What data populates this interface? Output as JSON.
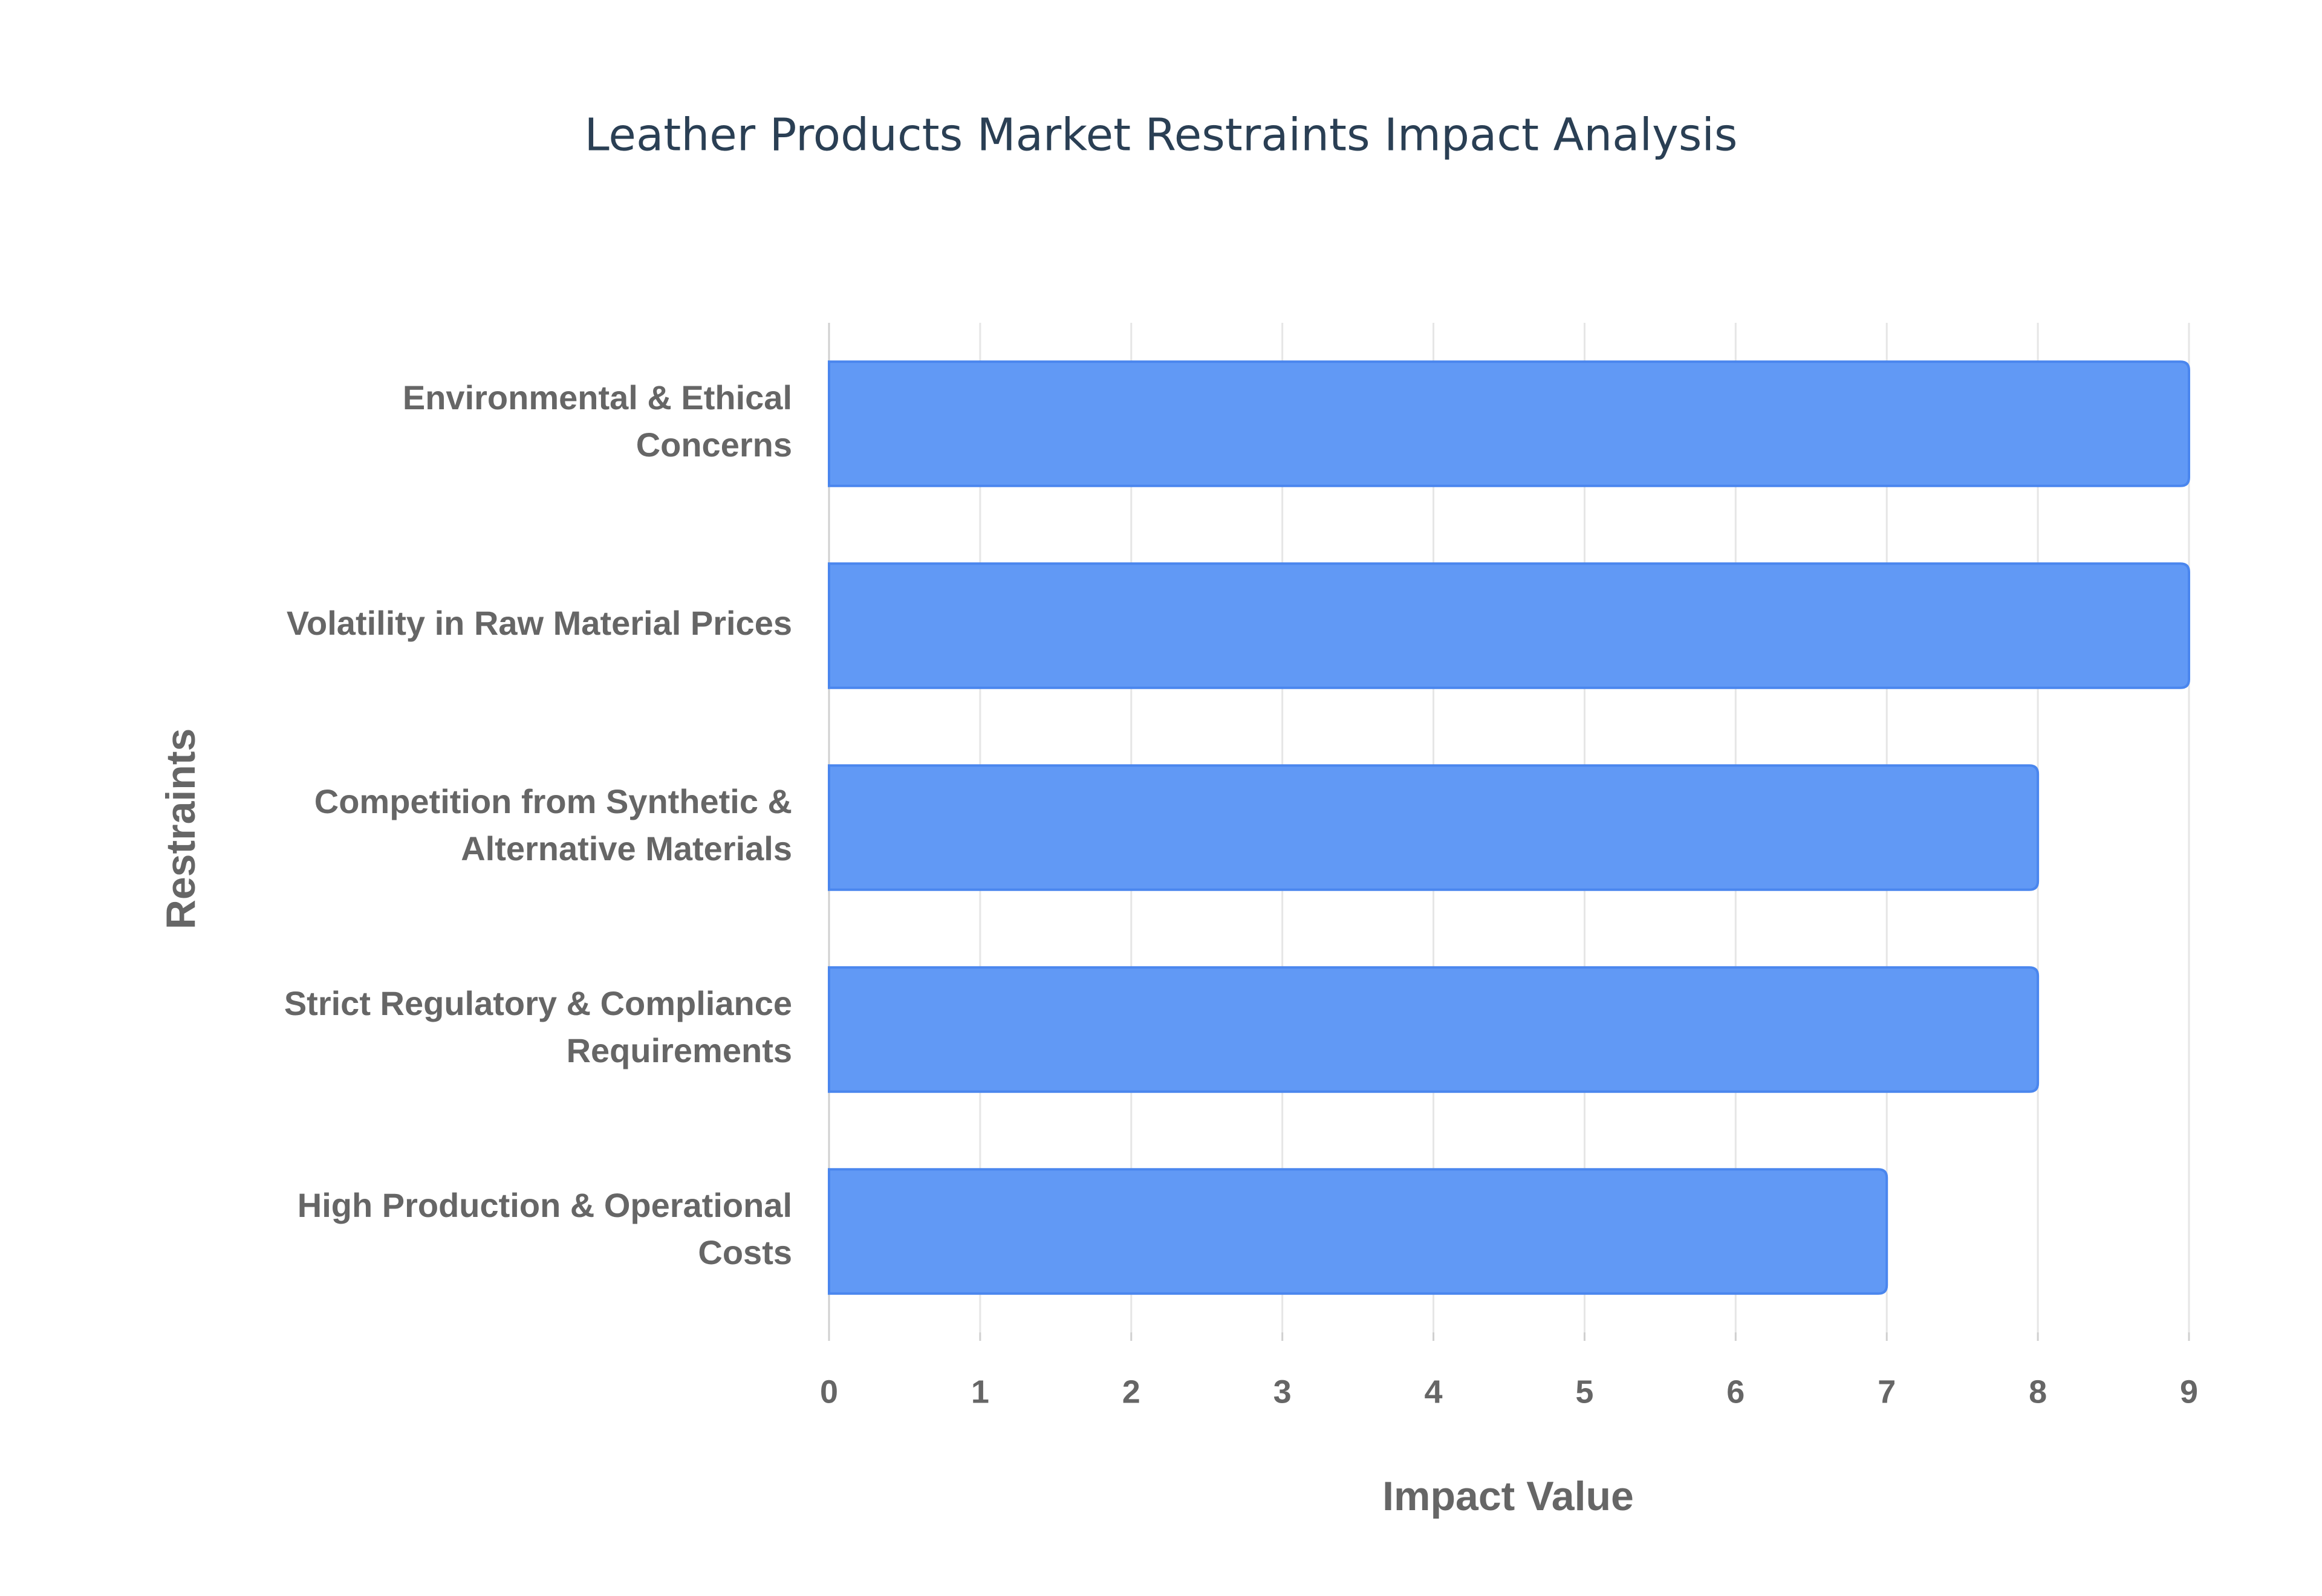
{
  "chart_data": {
    "type": "bar",
    "orientation": "horizontal",
    "title": "Leather Products Market Restraints Impact Analysis",
    "x_label": "Impact Value",
    "y_label": "Restraints",
    "categories": [
      "Environmental & Ethical Concerns",
      "Volatility in Raw Material Prices",
      "Competition from Synthetic & Alternative Materials",
      "Strict Regulatory & Compliance Requirements",
      "High Production & Operational Costs"
    ],
    "values": [
      9,
      9,
      8,
      8,
      7
    ],
    "color": "#6199f5",
    "xlim": [
      0,
      9
    ],
    "xticks": [
      0,
      1,
      2,
      3,
      4,
      5,
      6,
      7,
      8,
      9
    ],
    "grid": true
  }
}
